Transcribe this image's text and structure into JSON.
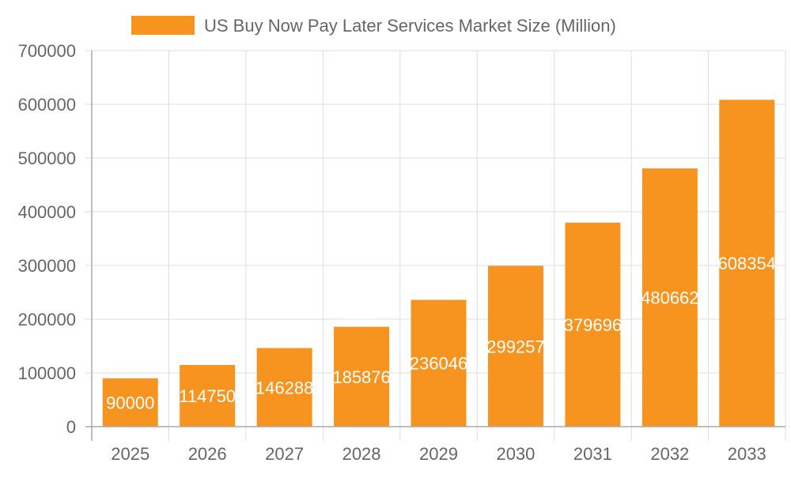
{
  "chart_data": {
    "type": "bar",
    "title": "",
    "xlabel": "",
    "ylabel": "",
    "legend": {
      "position": "top",
      "entries": [
        "US Buy Now Pay Later Services Market Size (Million)"
      ]
    },
    "categories": [
      "2025",
      "2026",
      "2027",
      "2028",
      "2029",
      "2030",
      "2031",
      "2032",
      "2033"
    ],
    "series": [
      {
        "name": "US Buy Now Pay Later Services Market Size (Million)",
        "values": [
          90000,
          114750,
          146288,
          185876,
          236046,
          299257,
          379696,
          480662,
          608354
        ],
        "color": "#f7941f"
      }
    ],
    "ylim": [
      0,
      700000
    ],
    "yticks": [
      "0",
      "100000",
      "200000",
      "300000",
      "400000",
      "500000",
      "600000",
      "700000"
    ],
    "grid": true,
    "data_labels": true
  }
}
